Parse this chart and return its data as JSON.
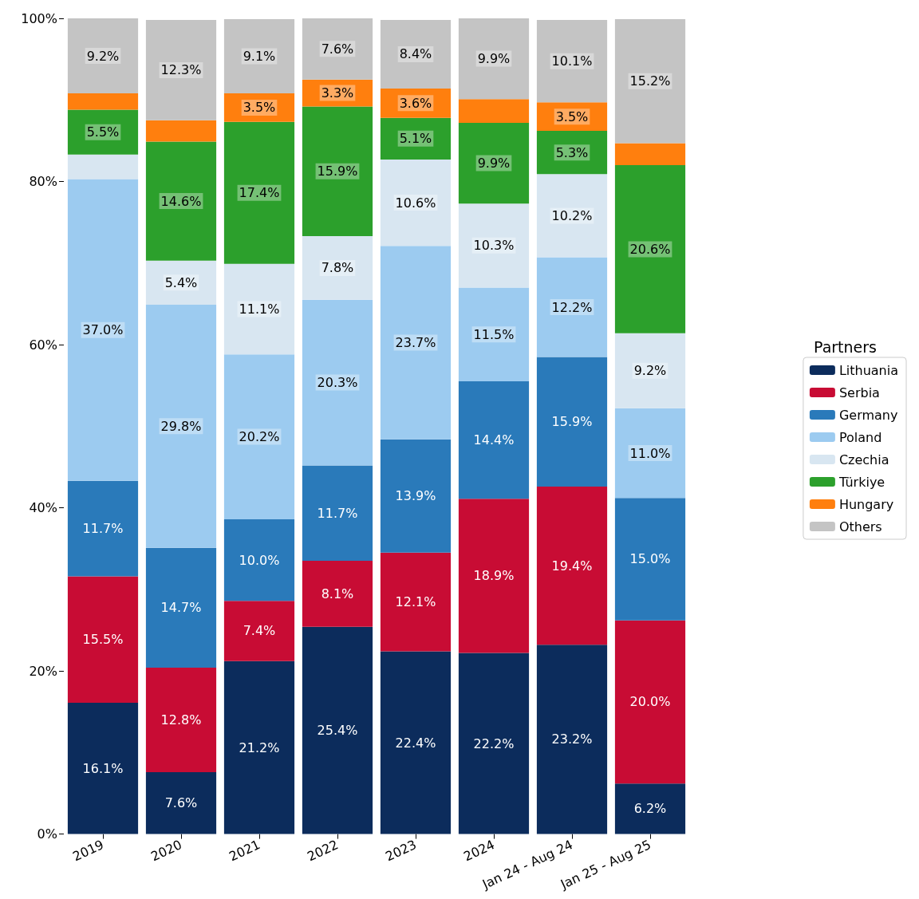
{
  "chart_data": {
    "type": "bar",
    "stacked": true,
    "categories": [
      "2019",
      "2020",
      "2021",
      "2022",
      "2023",
      "2024",
      "Jan 24 - Aug 24",
      "Jan 25 - Aug 25"
    ],
    "series": [
      {
        "name": "Lithuania",
        "color": "#0c2c5c",
        "values": [
          16.1,
          7.6,
          21.2,
          25.4,
          22.4,
          22.2,
          23.2,
          6.2
        ],
        "value_labels": [
          "16.1%",
          "7.6%",
          "21.2%",
          "25.4%",
          "22.4%",
          "22.2%",
          "23.2%",
          "6.2%"
        ]
      },
      {
        "name": "Serbia",
        "color": "#c80c34",
        "values": [
          15.5,
          12.8,
          7.4,
          8.1,
          12.1,
          18.9,
          19.4,
          20.0
        ],
        "value_labels": [
          "15.5%",
          "12.8%",
          "7.4%",
          "8.1%",
          "12.1%",
          "18.9%",
          "19.4%",
          "20.0%"
        ]
      },
      {
        "name": "Germany",
        "color": "#2a7aba",
        "values": [
          11.7,
          14.7,
          10.0,
          11.7,
          13.9,
          14.4,
          15.9,
          15.0
        ],
        "value_labels": [
          "11.7%",
          "14.7%",
          "10.0%",
          "11.7%",
          "13.9%",
          "14.4%",
          "15.9%",
          "15.0%"
        ]
      },
      {
        "name": "Poland",
        "color": "#9ccbf0",
        "values": [
          37.0,
          29.8,
          20.2,
          20.3,
          23.7,
          11.5,
          12.2,
          11.0
        ],
        "value_labels": [
          "37.0%",
          "29.8%",
          "20.2%",
          "20.3%",
          "23.7%",
          "11.5%",
          "12.2%",
          "11.0%"
        ]
      },
      {
        "name": "Czechia",
        "color": "#d8e6f1",
        "values": [
          3.0,
          5.4,
          11.1,
          7.8,
          10.6,
          10.3,
          10.2,
          9.2
        ],
        "value_labels": [
          null,
          "5.4%",
          "11.1%",
          "7.8%",
          "10.6%",
          "10.3%",
          "10.2%",
          "9.2%"
        ]
      },
      {
        "name": "Türkiye",
        "color": "#2ca02c",
        "values": [
          5.5,
          14.6,
          17.4,
          15.9,
          5.1,
          9.9,
          5.3,
          20.6
        ],
        "value_labels": [
          "5.5%",
          "14.6%",
          "17.4%",
          "15.9%",
          "5.1%",
          "9.9%",
          "5.3%",
          "20.6%"
        ]
      },
      {
        "name": "Hungary",
        "color": "#ff7f0e",
        "values": [
          2.0,
          2.6,
          3.5,
          3.3,
          3.6,
          2.9,
          3.5,
          2.7
        ],
        "value_labels": [
          null,
          null,
          "3.5%",
          "3.3%",
          "3.6%",
          null,
          "3.5%",
          null
        ]
      },
      {
        "name": "Others",
        "color": "#c4c4c4",
        "values": [
          9.2,
          12.3,
          9.1,
          7.6,
          8.4,
          9.9,
          10.1,
          15.2
        ],
        "value_labels": [
          "9.2%",
          "12.3%",
          "9.1%",
          "7.6%",
          "8.4%",
          "9.9%",
          "10.1%",
          "15.2%"
        ]
      }
    ],
    "ylim": [
      0,
      100
    ],
    "yticks": [
      {
        "value": 0,
        "label": "0%"
      },
      {
        "value": 20,
        "label": "20%"
      },
      {
        "value": 40,
        "label": "40%"
      },
      {
        "value": 60,
        "label": "60%"
      },
      {
        "value": 80,
        "label": "80%"
      },
      {
        "value": 100,
        "label": "100%"
      }
    ],
    "legend": "right",
    "legend_title": "Partners",
    "grid": false
  }
}
